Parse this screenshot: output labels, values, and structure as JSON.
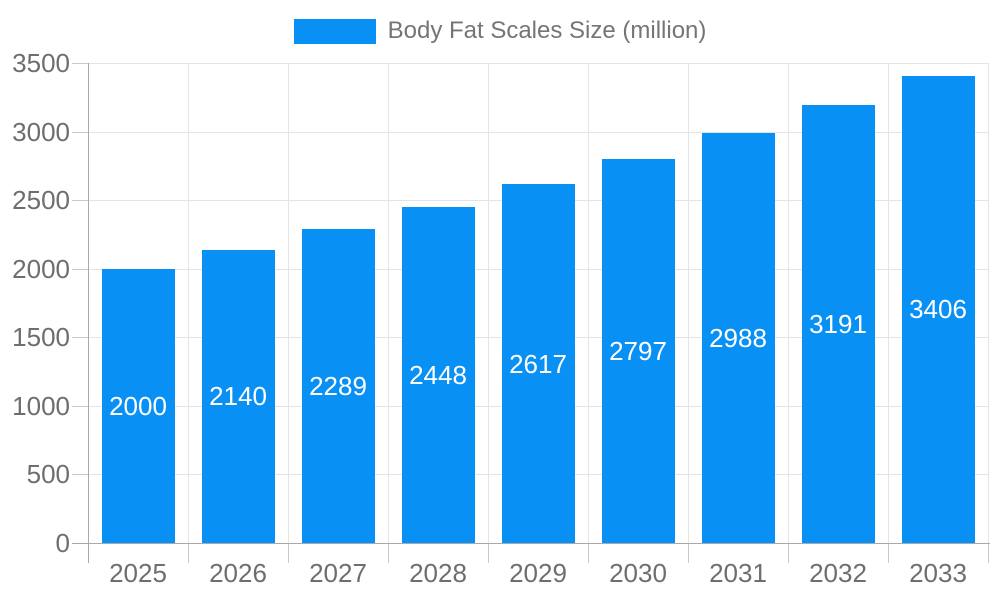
{
  "chart_data": {
    "type": "bar",
    "title": "Body Fat Scales Size (million)",
    "legend_label": "Body Fat Scales Size (million)",
    "legend_position": "top-center",
    "categories": [
      "2025",
      "2026",
      "2027",
      "2028",
      "2029",
      "2030",
      "2031",
      "2032",
      "2033"
    ],
    "series": [
      {
        "name": "Body Fat Scales Size (million)",
        "values": [
          2000,
          2140,
          2289,
          2448,
          2617,
          2797,
          2988,
          3191,
          3406
        ]
      }
    ],
    "value_labels_position": "inside-center",
    "xlabel": "",
    "ylabel": "",
    "ylim": [
      0,
      3500
    ],
    "y_ticks": [
      0,
      500,
      1000,
      1500,
      2000,
      2500,
      3000,
      3500
    ],
    "grid": true,
    "colors": {
      "bar": "#0890F5",
      "value_label": "#FFFFFF",
      "axis_text": "#6E6E6E",
      "legend_text": "#757575",
      "grid_line": "#E4E4E4",
      "axis_line": "#A9A9A9",
      "tick_mark": "#C9C9C9",
      "background": "#FFFFFF"
    }
  }
}
